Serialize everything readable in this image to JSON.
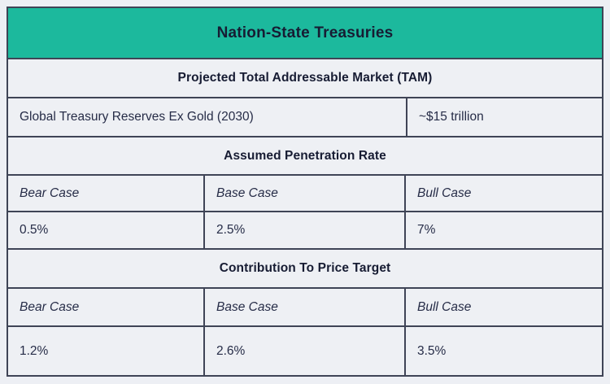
{
  "theme": {
    "accent_teal": "#1cb99d",
    "border_color": "#3f4456",
    "background": "#edeff4",
    "text_dark": "#171c33",
    "text_body": "#262c47"
  },
  "table": {
    "title": "Nation-State Treasuries",
    "tam": {
      "heading": "Projected Total Addressable Market (TAM)",
      "row": {
        "label": "Global Treasury Reserves Ex Gold (2030)",
        "value": "~$15 trillion"
      }
    },
    "penetration": {
      "heading": "Assumed Penetration Rate",
      "cases": [
        "Bear Case",
        "Base Case",
        "Bull Case"
      ],
      "values": [
        "0.5%",
        "2.5%",
        "7%"
      ]
    },
    "contribution": {
      "heading": "Contribution To Price Target",
      "cases": [
        "Bear Case",
        "Base Case",
        "Bull Case"
      ],
      "values": [
        "1.2%",
        "2.6%",
        "3.5%"
      ]
    }
  }
}
